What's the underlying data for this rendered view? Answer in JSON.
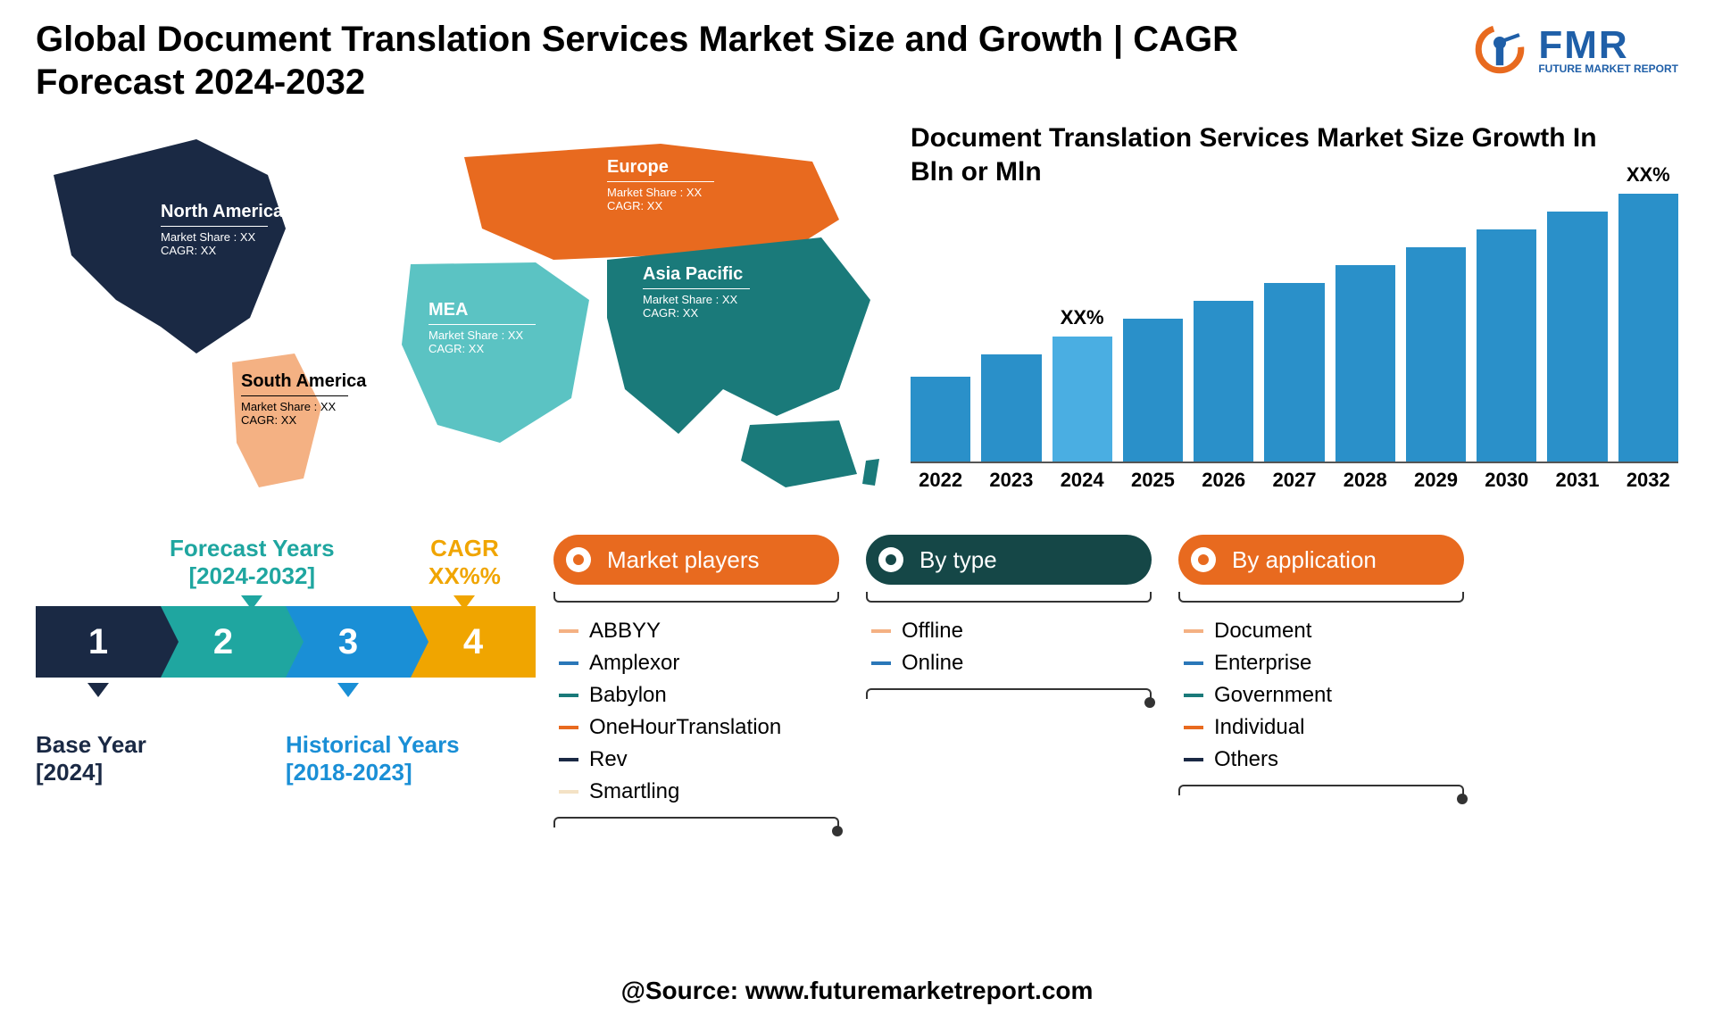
{
  "title": "Global Document Translation Services Market Size and Growth | CAGR Forecast 2024-2032",
  "logo": {
    "fmr": "FMR",
    "sub": "FUTURE MARKET REPORT",
    "icon_color": "#e86a1f",
    "text_color": "#1f5fa8"
  },
  "map": {
    "regions": [
      {
        "name": "North America",
        "share": "Market Share : XX",
        "cagr": "CAGR: XX",
        "color": "#1a2944"
      },
      {
        "name": "South America",
        "share": "Market Share : XX",
        "cagr": "CAGR: XX",
        "color": "#f4b183"
      },
      {
        "name": "Europe",
        "share": "Market Share : XX",
        "cagr": "CAGR: XX",
        "color": "#e86a1f"
      },
      {
        "name": "MEA",
        "share": "Market Share : XX",
        "cagr": "CAGR: XX",
        "color": "#5bc3c3"
      },
      {
        "name": "Asia Pacific",
        "share": "Market Share : XX",
        "cagr": "CAGR: XX",
        "color": "#1a7a7a"
      }
    ]
  },
  "chart": {
    "title": "Document Translation Services Market Size Growth In\nBln or Mln",
    "type": "bar",
    "years": [
      "2022",
      "2023",
      "2024",
      "2025",
      "2026",
      "2027",
      "2028",
      "2029",
      "2030",
      "2031",
      "2032"
    ],
    "values": [
      95,
      120,
      140,
      160,
      180,
      200,
      220,
      240,
      260,
      280,
      300
    ],
    "bar_color": "#2a90c9",
    "bar_highlight_color": "#4aaee2",
    "highlight_indices": [
      2
    ],
    "ylim": [
      0,
      300
    ],
    "bar_gap": 12,
    "axis_color": "#555555",
    "annotations": [
      {
        "index": 2,
        "text": "XX%"
      },
      {
        "index": 10,
        "text": "XX%"
      }
    ],
    "label_fontsize": 22,
    "title_fontsize": 30
  },
  "timeline": {
    "forecast": {
      "label": "Forecast Years",
      "range": "[2024-2032]",
      "color": "#1fa6a0"
    },
    "cagr": {
      "label": "CAGR",
      "value": "XX%%",
      "color": "#f0a500"
    },
    "boxes": [
      {
        "num": "1",
        "bg": "#1a2944"
      },
      {
        "num": "2",
        "bg": "#1fa6a0"
      },
      {
        "num": "3",
        "bg": "#1a8fd6"
      },
      {
        "num": "4",
        "bg": "#f0a500"
      }
    ],
    "base": {
      "label": "Base Year",
      "range": "[2024]",
      "color": "#1a2944"
    },
    "historical": {
      "label": "Historical Years",
      "range": "[2018-2023]",
      "color": "#1a8fd6"
    }
  },
  "pills": [
    {
      "title": "Market players",
      "pill_color": "#e86a1f",
      "items": [
        {
          "label": "ABBYY",
          "marker": "#f4b183"
        },
        {
          "label": "Amplexor",
          "marker": "#2a77b8"
        },
        {
          "label": "Babylon",
          "marker": "#1a7a7a"
        },
        {
          "label": "OneHourTranslation",
          "marker": "#e86a1f"
        },
        {
          "label": "Rev",
          "marker": "#1a2944"
        },
        {
          "label": "Smartling",
          "marker": "#f4e2c5"
        }
      ]
    },
    {
      "title": "By type",
      "pill_color": "#154747",
      "items": [
        {
          "label": "Offline",
          "marker": "#f4b183"
        },
        {
          "label": "Online",
          "marker": "#2a77b8"
        }
      ]
    },
    {
      "title": "By application",
      "pill_color": "#e86a1f",
      "items": [
        {
          "label": "Document",
          "marker": "#f4b183"
        },
        {
          "label": "Enterprise",
          "marker": "#2a77b8"
        },
        {
          "label": "Government",
          "marker": "#1a7a7a"
        },
        {
          "label": "Individual",
          "marker": "#e86a1f"
        },
        {
          "label": "Others",
          "marker": "#1a2944"
        }
      ]
    }
  ],
  "footer": "@Source: www.futuremarketreport.com"
}
